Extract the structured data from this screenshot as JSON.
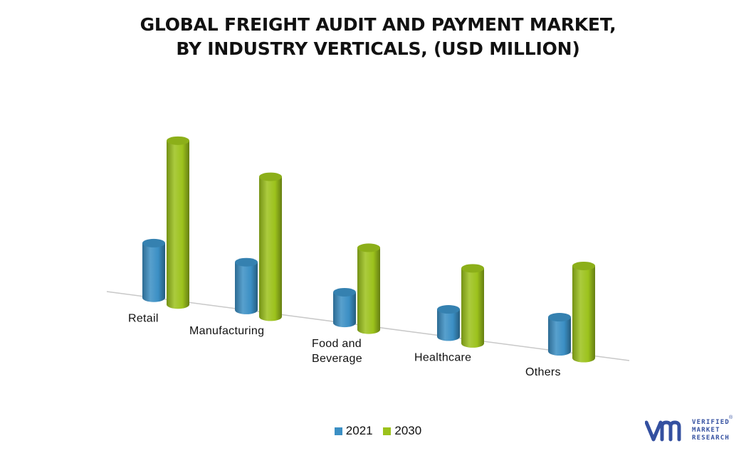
{
  "title_lines": [
    "GLOBAL FREIGHT AUDIT AND PAYMENT MARKET,",
    "BY INDUSTRY VERTICALS, (USD MILLION)"
  ],
  "chart_data": {
    "type": "bar",
    "title": "GLOBAL FREIGHT AUDIT AND PAYMENT MARKET, BY INDUSTRY VERTICALS, (USD MILLION)",
    "categories": [
      [
        "Retail"
      ],
      [
        "Manufacturing"
      ],
      [
        "Food and",
        "Beverage"
      ],
      [
        "Healthcare"
      ],
      [
        "Others"
      ]
    ],
    "series": [
      {
        "name": "2021",
        "color": "#3b8fc4",
        "values": [
          80,
          70,
          45,
          40,
          50
        ]
      },
      {
        "name": "2030",
        "color": "#9cc21c",
        "values": [
          240,
          205,
          120,
          110,
          135
        ]
      }
    ],
    "ylim": [
      0,
      250
    ],
    "style": "3d-cylinder",
    "grid": false,
    "legend": "bottom-center"
  },
  "logo": {
    "mark": "vm-logo-icon",
    "lines": [
      "VERIFIED",
      "MARKET",
      "RESEARCH"
    ],
    "reg": "®"
  }
}
